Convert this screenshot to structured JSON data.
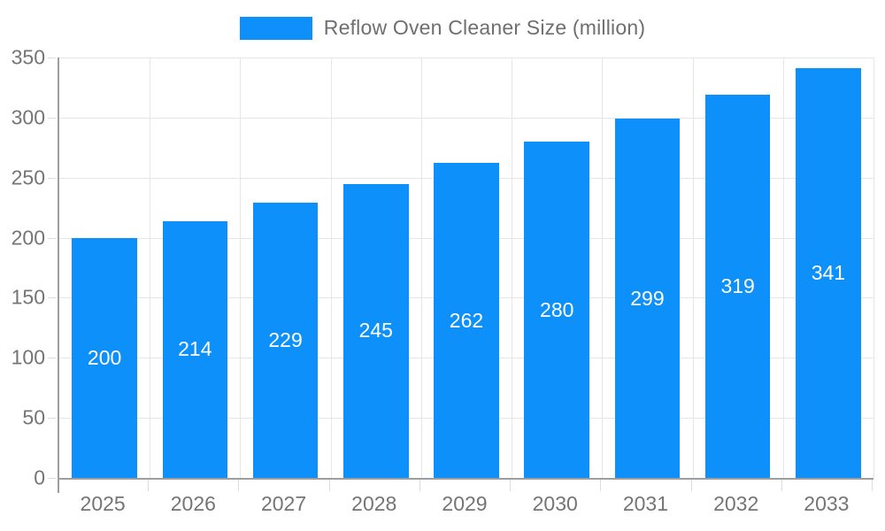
{
  "chart_data": {
    "type": "bar",
    "title": "Reflow Oven Cleaner Size (million)",
    "categories": [
      "2025",
      "2026",
      "2027",
      "2028",
      "2029",
      "2030",
      "2031",
      "2032",
      "2033"
    ],
    "values": [
      200,
      214,
      229,
      245,
      262,
      280,
      299,
      319,
      341
    ],
    "value_labels": [
      "200",
      "214",
      "229",
      "245",
      "262",
      "280",
      "299",
      "319",
      "341"
    ],
    "xlabel": "",
    "ylabel": "",
    "ylim": [
      0,
      350
    ],
    "ytick_labels": [
      "0",
      "50",
      "100",
      "150",
      "200",
      "250",
      "300",
      "350"
    ],
    "grid": "on",
    "legend_position": "top-center",
    "colors": {
      "bar": "#0d90f9",
      "bar_value_text": "#ffffff",
      "grid_line": "#e6e6e6",
      "axis_line": "#9e9e9e",
      "tick_text": "#757575",
      "legend_text": "#6f6f6f"
    }
  }
}
